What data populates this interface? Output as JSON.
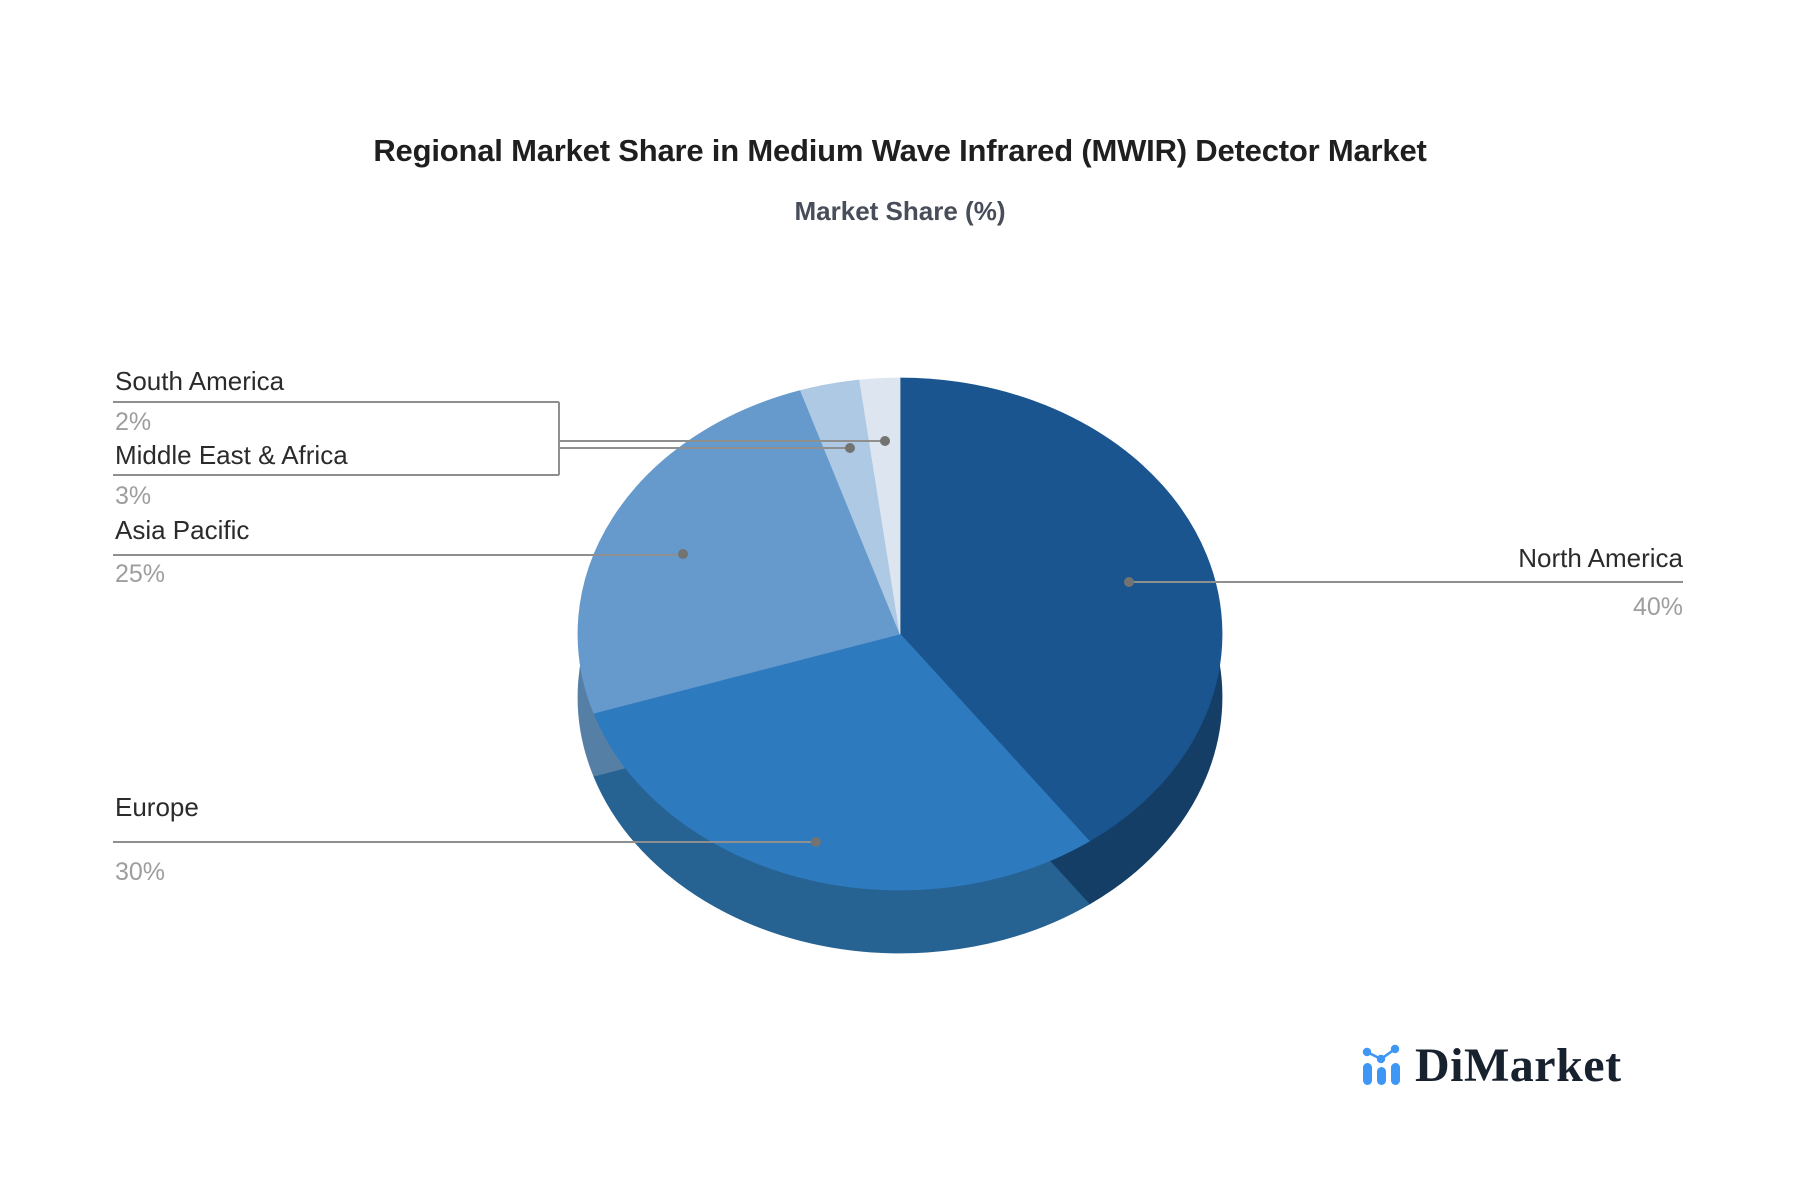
{
  "chart_data": {
    "type": "pie",
    "title": "Regional Market Share in Medium Wave Infrared (MWIR) Detector Market",
    "subtitle": "Market Share (%)",
    "unit": "%",
    "style": "3d-pie",
    "start_angle": "top",
    "direction": "clockwise",
    "grid": false,
    "legend_position": "callout-labels",
    "slices": [
      {
        "label": "North America",
        "value": 40,
        "display": "40%",
        "color": "#1B5590",
        "rim_color": "#143E66"
      },
      {
        "label": "Europe",
        "value": 30,
        "display": "30%",
        "color": "#2E7ABE",
        "rim_color": "#266292"
      },
      {
        "label": "Asia Pacific",
        "value": 25,
        "display": "25%",
        "color": "#6699CC",
        "rim_color": "#567FA6"
      },
      {
        "label": "Middle East & Africa",
        "value": 3,
        "display": "3%",
        "color": "#AEC9E4",
        "rim_color": "#8FA9C4"
      },
      {
        "label": "South America",
        "value": 2,
        "display": "2%",
        "color": "#DDE6F0",
        "rim_color": "#B8C2D0"
      }
    ]
  },
  "logo": {
    "text": "DiMarket",
    "icon": "bar-line-chart-icon",
    "icon_color": "#3E97F5",
    "text_color": "#18222F"
  },
  "colors": {
    "background": "#FFFFFF",
    "title_text": "#1F1F1F",
    "subtitle_text": "#474D59",
    "label_text": "#2B2B2B",
    "value_text": "#9E9E9E",
    "leader_line": "#8F8F8F",
    "leader_dot": "#737373"
  }
}
